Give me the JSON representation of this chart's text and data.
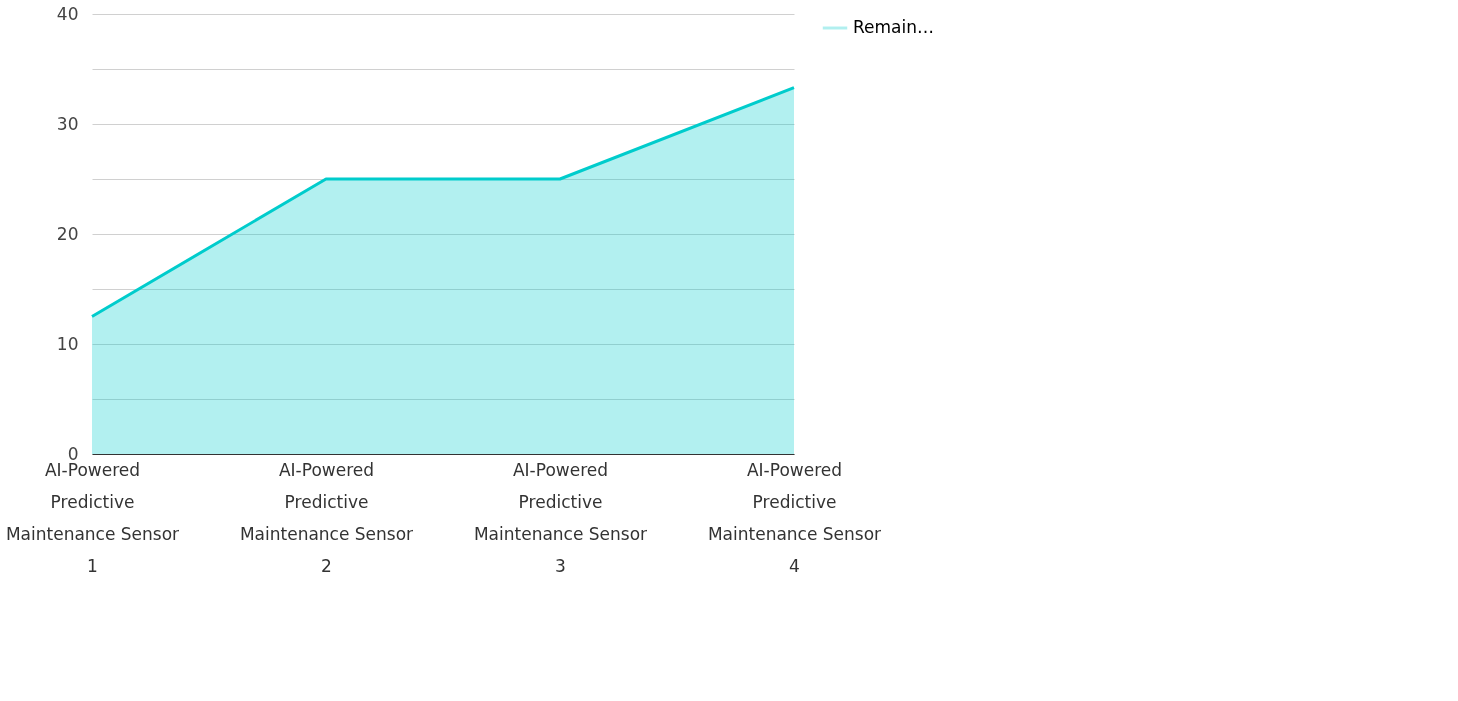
{
  "chart_data": {
    "type": "area",
    "categories": [
      "AI-Powered Predictive Maintenance Sensor 1",
      "AI-Powered Predictive Maintenance Sensor 2",
      "AI-Powered Predictive Maintenance Sensor 3",
      "AI-Powered Predictive Maintenance Sensor 4"
    ],
    "series": [
      {
        "name": "Remain…",
        "color": "#00cccc",
        "values": [
          12.5,
          25,
          25,
          33.3
        ]
      }
    ],
    "ylim": [
      0,
      40
    ],
    "yticks": [
      0,
      {
        "value": 5,
        "label": null
      },
      10,
      {
        "value": 15,
        "label": null
      },
      20,
      {
        "value": 25,
        "label": null
      },
      30,
      {
        "value": 35,
        "label": null
      },
      40
    ],
    "grid": "y",
    "legend": "top right"
  }
}
